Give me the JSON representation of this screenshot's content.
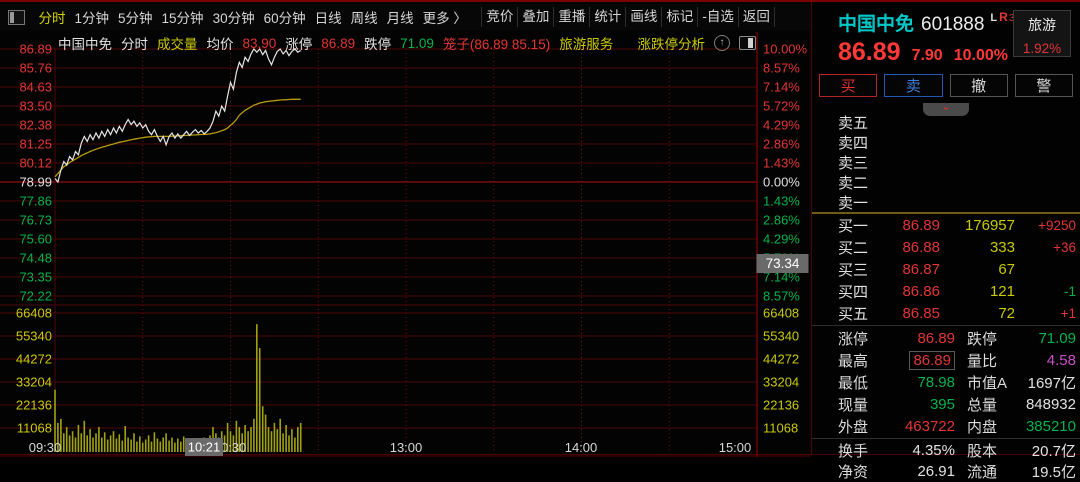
{
  "toolbar": {
    "periods": [
      "分时",
      "1分钟",
      "5分钟",
      "15分钟",
      "30分钟",
      "60分钟",
      "日线",
      "周线",
      "月线",
      "更多 〉"
    ],
    "active_period": "分时",
    "tools": [
      "竞价",
      "叠加",
      "重播",
      "统计",
      "画线",
      "标记",
      "-自选",
      "返回"
    ]
  },
  "chart": {
    "overlay": {
      "name": "中国中免",
      "period": "分时",
      "indicator": "成交量",
      "avg_label": "均价",
      "avg_value": "83.90",
      "limit_up_label": "涨停",
      "limit_up": "86.89",
      "limit_down_label": "跌停",
      "limit_down": "71.09",
      "cage": "笼子(86.89 85.15)",
      "sector": "旅游服务",
      "analysis": "涨跌停分析"
    },
    "left_axis": [
      {
        "t": "86.89",
        "c": "r"
      },
      {
        "t": "85.76",
        "c": "r"
      },
      {
        "t": "84.63",
        "c": "r"
      },
      {
        "t": "83.50",
        "c": "r"
      },
      {
        "t": "82.38",
        "c": "r"
      },
      {
        "t": "81.25",
        "c": "r"
      },
      {
        "t": "80.12",
        "c": "r"
      },
      {
        "t": "78.99",
        "c": "w"
      },
      {
        "t": "77.86",
        "c": "g"
      },
      {
        "t": "76.73",
        "c": "g"
      },
      {
        "t": "75.60",
        "c": "g"
      },
      {
        "t": "74.48",
        "c": "g"
      },
      {
        "t": "73.35",
        "c": "g"
      },
      {
        "t": "72.22",
        "c": "g"
      }
    ],
    "right_axis": [
      {
        "t": "10.00%",
        "c": "r"
      },
      {
        "t": "8.57%",
        "c": "r"
      },
      {
        "t": "7.14%",
        "c": "r"
      },
      {
        "t": "5.72%",
        "c": "r"
      },
      {
        "t": "4.29%",
        "c": "r"
      },
      {
        "t": "2.86%",
        "c": "r"
      },
      {
        "t": "1.43%",
        "c": "r"
      },
      {
        "t": "0.00%",
        "c": "w"
      },
      {
        "t": "1.43%",
        "c": "g"
      },
      {
        "t": "2.86%",
        "c": "g"
      },
      {
        "t": "4.29%",
        "c": "g"
      },
      {
        "t": "5.72%",
        "c": "g"
      },
      {
        "t": "7.14%",
        "c": "g"
      },
      {
        "t": "8.57%",
        "c": "g"
      }
    ],
    "vol_axis": [
      "66408",
      "55340",
      "44272",
      "33204",
      "22136",
      "11068"
    ],
    "time_axis": [
      "09:30",
      "10:30",
      "13:00",
      "14:00",
      "15:00"
    ],
    "crosshair": {
      "price_tag": "73.34",
      "time_tag": "10:21"
    },
    "series": {
      "prev_close": 78.99,
      "limit_up": 86.89,
      "session_minutes": 240,
      "price": [
        79.2,
        78.99,
        79.7,
        80.2,
        80.0,
        80.5,
        80.3,
        80.8,
        80.6,
        81.3,
        81.7,
        81.4,
        81.8,
        81.5,
        81.9,
        81.6,
        82.0,
        81.7,
        82.1,
        81.8,
        82.2,
        81.9,
        82.3,
        82.0,
        82.4,
        82.7,
        82.4,
        82.6,
        82.3,
        82.5,
        82.2,
        82.4,
        82.0,
        81.8,
        82.1,
        81.7,
        81.4,
        81.7,
        81.2,
        81.7,
        81.9,
        81.6,
        81.85,
        81.6,
        81.8,
        82.0,
        81.75,
        81.95,
        82.1,
        81.9,
        82.05,
        81.85,
        82.0,
        82.2,
        82.6,
        83.2,
        82.9,
        83.5,
        83.2,
        84.1,
        84.9,
        84.5,
        85.5,
        86.1,
        85.8,
        86.4,
        86.15,
        86.6,
        86.89,
        86.7,
        86.89,
        86.55,
        86.8,
        86.3,
        85.95,
        86.4,
        86.75,
        86.89,
        86.6,
        86.8,
        86.5,
        86.75,
        86.89,
        86.7,
        86.8
      ],
      "avg": [
        79.3,
        79.5,
        79.7,
        79.9,
        80.0,
        80.15,
        80.25,
        80.35,
        80.45,
        80.55,
        80.65,
        80.72,
        80.8,
        80.87,
        80.93,
        81.0,
        81.05,
        81.1,
        81.15,
        81.2,
        81.25,
        81.3,
        81.35,
        81.38,
        81.42,
        81.46,
        81.5,
        81.53,
        81.56,
        81.6,
        81.62,
        81.65,
        81.67,
        81.68,
        81.7,
        81.7,
        81.7,
        81.7,
        81.7,
        81.7,
        81.71,
        81.72,
        81.73,
        81.74,
        81.75,
        81.76,
        81.77,
        81.78,
        81.79,
        81.8,
        81.81,
        81.82,
        81.83,
        81.85,
        81.88,
        81.92,
        81.97,
        82.03,
        82.1,
        82.2,
        82.35,
        82.5,
        82.7,
        82.95,
        83.1,
        83.25,
        83.35,
        83.45,
        83.55,
        83.62,
        83.68,
        83.72,
        83.76,
        83.78,
        83.8,
        83.82,
        83.84,
        83.86,
        83.87,
        83.88,
        83.89,
        83.9,
        83.9,
        83.9,
        83.9
      ],
      "volume": [
        30000,
        14000,
        16000,
        9000,
        12000,
        8000,
        10000,
        7000,
        13000,
        9000,
        15000,
        8000,
        11000,
        7000,
        9000,
        12000,
        7000,
        9500,
        6000,
        8000,
        10000,
        6500,
        8500,
        5500,
        12500,
        7000,
        6000,
        9000,
        5000,
        7500,
        4500,
        6000,
        8000,
        5000,
        9500,
        6500,
        5000,
        7000,
        9000,
        5500,
        7000,
        4500,
        6500,
        5000,
        7500,
        5000,
        6000,
        4000,
        6500,
        4500,
        5500,
        7000,
        5000,
        8000,
        12000,
        9000,
        7000,
        10000,
        8000,
        14000,
        10000,
        8000,
        15000,
        12000,
        9000,
        13000,
        10000,
        12000,
        16000,
        61500,
        50000,
        22000,
        18000,
        12000,
        10000,
        14000,
        11000,
        16000,
        9000,
        13000,
        8000,
        11000,
        7000,
        12000,
        14000
      ]
    }
  },
  "panel": {
    "stock": {
      "name": "中国中免",
      "code": "601888",
      "flag_l": "L",
      "flag_r": "R",
      "flag_index": "300",
      "price": "86.89",
      "change": "7.90",
      "pct": "10.00%",
      "sector": "旅游",
      "sector_pct": "1.92%"
    },
    "actions": [
      {
        "label": "买",
        "style": "buy"
      },
      {
        "label": "卖",
        "style": "sell"
      },
      {
        "label": "撤",
        "style": "plain"
      },
      {
        "label": "警",
        "style": "plain"
      }
    ],
    "collapse_glyph": "⌄",
    "sell_rows": [
      {
        "label": "卖五"
      },
      {
        "label": "卖四"
      },
      {
        "label": "卖三"
      },
      {
        "label": "卖二"
      },
      {
        "label": "卖一"
      }
    ],
    "buy_rows": [
      {
        "label": "买一",
        "price": "86.89",
        "vol": "176957",
        "delta": "+9250",
        "dc": "r"
      },
      {
        "label": "买二",
        "price": "86.88",
        "vol": "333",
        "delta": "+36",
        "dc": "r"
      },
      {
        "label": "买三",
        "price": "86.87",
        "vol": "67",
        "delta": "",
        "dc": "w"
      },
      {
        "label": "买四",
        "price": "86.86",
        "vol": "121",
        "delta": "-1",
        "dc": "g"
      },
      {
        "label": "买五",
        "price": "86.85",
        "vol": "72",
        "delta": "+1",
        "dc": "r"
      }
    ],
    "stats": [
      [
        {
          "l": "涨停",
          "v": "86.89",
          "c": "r"
        },
        {
          "l": "跌停",
          "v": "71.09",
          "c": "g"
        }
      ],
      [
        {
          "l": "最高",
          "v": "86.89",
          "c": "r",
          "boxed": true
        },
        {
          "l": "量比",
          "v": "4.58",
          "c": "m"
        }
      ],
      [
        {
          "l": "最低",
          "v": "78.98",
          "c": "g"
        },
        {
          "l": "市值A",
          "v": "1697亿",
          "c": "w"
        }
      ],
      [
        {
          "l": "现量",
          "v": "395",
          "c": "g"
        },
        {
          "l": "总量",
          "v": "848932",
          "c": "w"
        }
      ],
      [
        {
          "l": "外盘",
          "v": "463722",
          "c": "r"
        },
        {
          "l": "内盘",
          "v": "385210",
          "c": "g"
        }
      ]
    ],
    "stats2": [
      [
        {
          "l": "换手",
          "v": "4.35%",
          "c": "w"
        },
        {
          "l": "股本",
          "v": "20.7亿",
          "c": "w"
        }
      ],
      [
        {
          "l": "净资",
          "v": "26.91",
          "c": "w"
        },
        {
          "l": "流通",
          "v": "19.5亿",
          "c": "w"
        }
      ]
    ]
  }
}
